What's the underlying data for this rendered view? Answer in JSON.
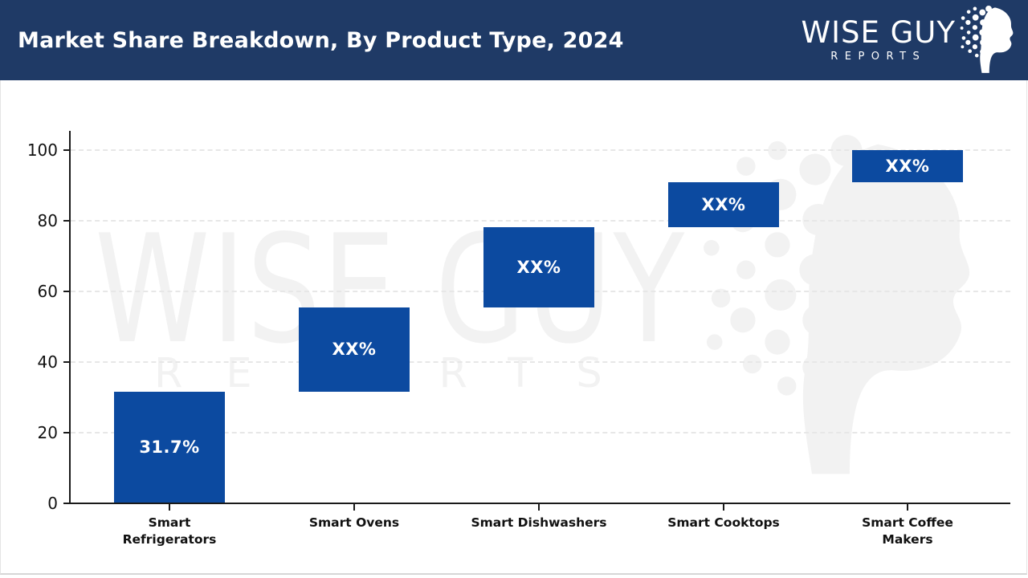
{
  "header": {
    "title": "Market Share Breakdown, By Product Type, 2024",
    "logo": {
      "line1": "WISE GUY",
      "line2": "REPORTS"
    }
  },
  "watermark": {
    "line1": "WISE GUY",
    "line2": "REPORTS"
  },
  "colors": {
    "header_bg": "#1f3a66",
    "title_text": "#ffffff",
    "bar": "#0c4aa0",
    "bar_label": "#ffffff",
    "grid": "#e7e7e7",
    "axis": "#1a1a1a",
    "tick_text": "#111111",
    "watermark": "#f2f2f2"
  },
  "chart_data": {
    "type": "bar",
    "subtype": "waterfall",
    "title": "Market Share Breakdown, By Product Type, 2024",
    "xlabel": "",
    "ylabel": "",
    "ylim": [
      0,
      100
    ],
    "yticks": [
      0,
      20,
      40,
      60,
      80,
      100
    ],
    "grid": "horizontal-dashed",
    "legend": "none",
    "categories": [
      "Smart Refrigerators",
      "Smart Ovens",
      "Smart Dishwashers",
      "Smart Cooktops",
      "Smart Coffee Makers"
    ],
    "category_lines": [
      [
        "Smart",
        "Refrigerators"
      ],
      [
        "Smart Ovens"
      ],
      [
        "Smart Dishwashers"
      ],
      [
        "Smart Cooktops"
      ],
      [
        "Smart Coffee",
        "Makers"
      ]
    ],
    "segments": [
      {
        "category": "Smart Refrigerators",
        "start": 0,
        "end": 31.7,
        "label": "31.7%"
      },
      {
        "category": "Smart Ovens",
        "start": 31.7,
        "end": 55.5,
        "label": "XX%"
      },
      {
        "category": "Smart Dishwashers",
        "start": 55.5,
        "end": 78.2,
        "label": "XX%"
      },
      {
        "category": "Smart Cooktops",
        "start": 78.2,
        "end": 91.0,
        "label": "XX%"
      },
      {
        "category": "Smart Coffee Makers",
        "start": 91.0,
        "end": 100,
        "label": "XX%"
      }
    ]
  }
}
